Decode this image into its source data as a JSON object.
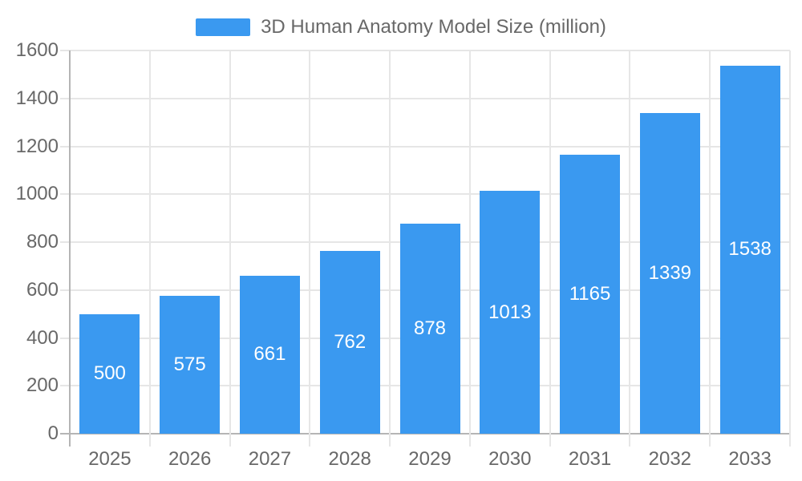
{
  "chart_data": {
    "type": "bar",
    "title": "3D Human Anatomy Model Size (million)",
    "legend_position": "top",
    "categories": [
      "2025",
      "2026",
      "2027",
      "2028",
      "2029",
      "2030",
      "2031",
      "2032",
      "2033"
    ],
    "series": [
      {
        "name": "3D Human Anatomy Model Size (million)",
        "values": [
          500,
          575,
          661,
          762,
          878,
          1013,
          1165,
          1339,
          1538
        ]
      }
    ],
    "xlabel": "",
    "ylabel": "",
    "ylim": [
      0,
      1600
    ],
    "yticks": [
      0,
      200,
      400,
      600,
      800,
      1000,
      1200,
      1400,
      1600
    ],
    "grid": true,
    "value_labels": "inside-center",
    "colors": {
      "bar": "#3a99f0",
      "bar_label": "#ffffff",
      "grid": "#e6e6e6",
      "axis_zero_line": "#b5b5b5",
      "text": "#686868",
      "background": "#ffffff"
    }
  }
}
